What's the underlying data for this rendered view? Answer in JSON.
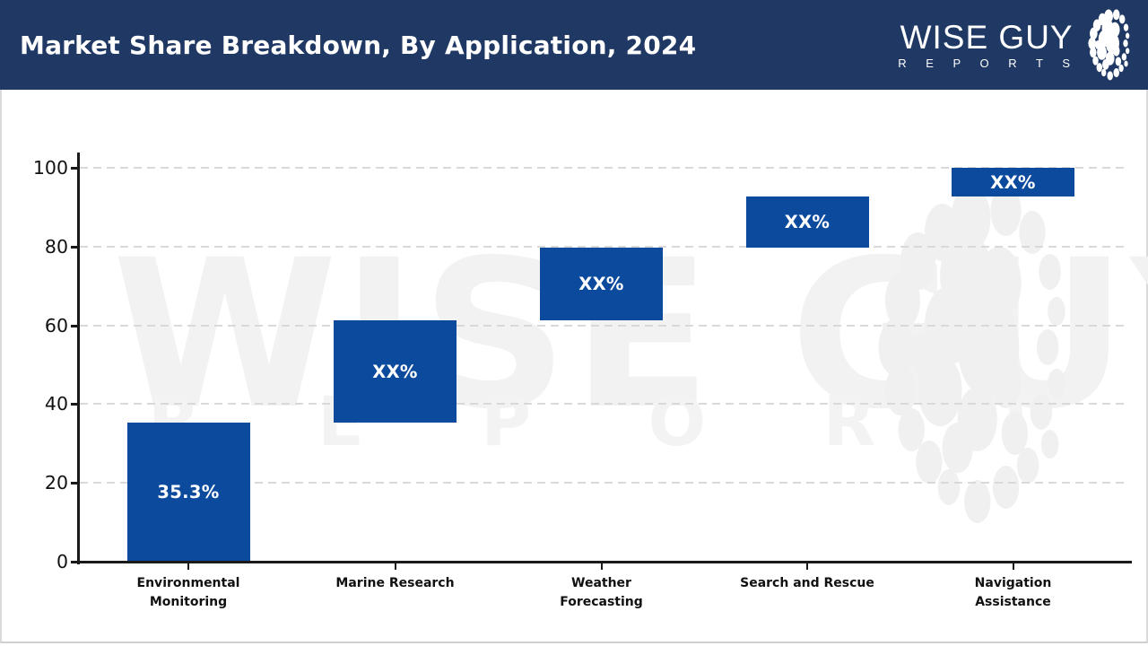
{
  "header": {
    "title": "Market Share Breakdown, By Application, 2024",
    "logo": {
      "brand": "WISE GUY",
      "sub": "R E P O R T S"
    }
  },
  "watermark": {
    "brand": "WISE GUY",
    "sub": "R E P O R T S"
  },
  "chart_data": {
    "type": "bar",
    "subtype": "waterfall",
    "title": "Market Share Breakdown, By Application, 2024",
    "categories": [
      "Environmental Monitoring",
      "Marine Research",
      "Weather Forecasting",
      "Search and Rescue",
      "Navigation Assistance"
    ],
    "category_lines": [
      [
        "Environmental",
        "Monitoring"
      ],
      [
        "Marine Research"
      ],
      [
        "Weather",
        "Forecasting"
      ],
      [
        "Search and Rescue"
      ],
      [
        "Navigation",
        "Assistance"
      ]
    ],
    "segments": [
      {
        "category": "Environmental Monitoring",
        "start": 0,
        "end": 35.3,
        "label": "35.3%"
      },
      {
        "category": "Marine Research",
        "start": 35.3,
        "end": 61.2,
        "label": "XX%"
      },
      {
        "category": "Weather Forecasting",
        "start": 61.2,
        "end": 79.8,
        "label": "XX%"
      },
      {
        "category": "Search and Rescue",
        "start": 79.8,
        "end": 92.6,
        "label": "XX%"
      },
      {
        "category": "Navigation Assistance",
        "start": 92.6,
        "end": 100,
        "label": "XX%"
      }
    ],
    "xlabel": "",
    "ylabel": "",
    "yticks": [
      0,
      20,
      40,
      60,
      80,
      100
    ],
    "ylim": [
      0,
      104
    ],
    "grid": "horizontal-dashed",
    "legend": "none",
    "colors": {
      "bar": "#0c4a9e",
      "grid": "#d9d9d9",
      "axis": "#1a1a1a",
      "bar_label": "#ffffff"
    }
  },
  "colors": {
    "header_bg": "#1f3864",
    "body_bg": "#ffffff",
    "watermark": "#f2f2f2",
    "frame": "#d9d9d9"
  }
}
